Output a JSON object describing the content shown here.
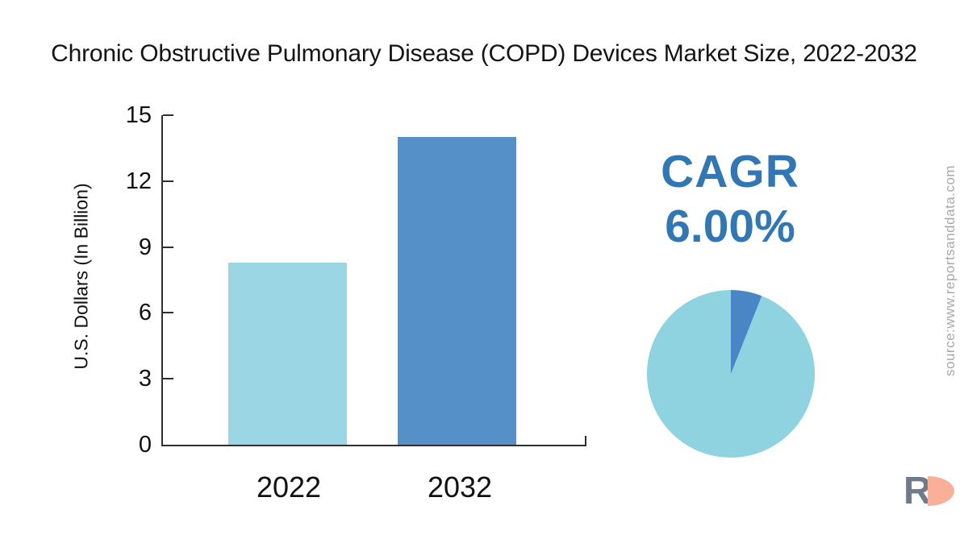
{
  "title": "Chronic Obstructive Pulmonary Disease (COPD) Devices Market Size, 2022-2032",
  "source_note": "source:www.reportsanddata.com",
  "cagr": {
    "label": "CAGR",
    "value": "6.00%"
  },
  "logo": {
    "letter": "R"
  },
  "colors": {
    "bar_2022": "#9ad6e4",
    "bar_2032": "#5590c9",
    "pie_light": "#8fd2e0",
    "pie_dark": "#4a86c5",
    "accent_text": "#3077b4",
    "axis": "#2f2f2f",
    "source_text": "#a8a8a8",
    "logo_r": "#6f7b8b",
    "logo_d": "#f8b098"
  },
  "chart_data": [
    {
      "type": "bar",
      "title": "Chronic Obstructive Pulmonary Disease (COPD) Devices Market Size, 2022-2032",
      "categories": [
        "2022",
        "2032"
      ],
      "values": [
        8.3,
        14.0
      ],
      "xlabel": "",
      "ylabel": "U.S. Dollars (In Billion)",
      "yticks": [
        0,
        3,
        6,
        9,
        12,
        15
      ],
      "ylim": [
        0,
        15
      ],
      "grid": false,
      "legend": false,
      "bar_colors": [
        "#9ad6e4",
        "#5590c9"
      ]
    },
    {
      "type": "pie",
      "annotation": "CAGR 6.00%",
      "start_angle_deg": 0,
      "direction": "clockwise",
      "slices": [
        {
          "name": "CAGR",
          "value": 6,
          "color": "#4a86c5"
        },
        {
          "name": "remainder",
          "value": 94,
          "color": "#8fd2e0"
        }
      ]
    }
  ]
}
